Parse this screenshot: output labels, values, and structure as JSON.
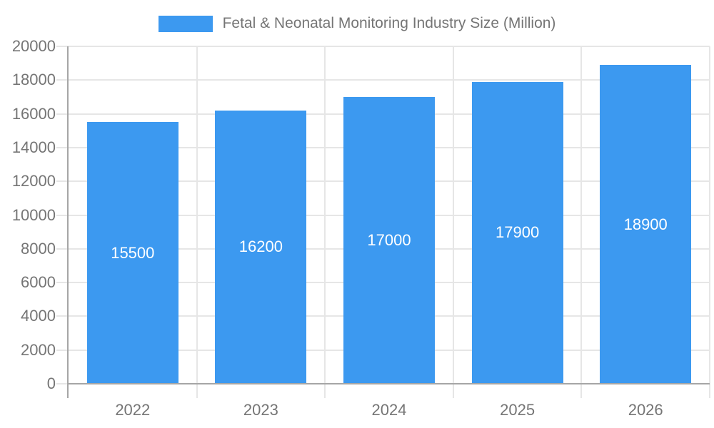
{
  "chart_data": {
    "type": "bar",
    "title": "Fetal & Neonatal Monitoring Industry Size (Million)",
    "categories": [
      "2022",
      "2023",
      "2024",
      "2025",
      "2026"
    ],
    "values": [
      15500,
      16200,
      17000,
      17900,
      18900
    ],
    "bar_labels": [
      "15500",
      "16200",
      "17000",
      "17900",
      "18900"
    ],
    "xlabel": "",
    "ylabel": "",
    "ylim": [
      0,
      20000
    ],
    "y_tick_step": 2000,
    "y_tick_labels": [
      "0",
      "2000",
      "4000",
      "6000",
      "8000",
      "10000",
      "12000",
      "14000",
      "16000",
      "18000",
      "20000"
    ],
    "grid": true,
    "legend_position": "top-center",
    "colors": {
      "bar": "#3C99F0",
      "bar_label_text": "#FFFFFF",
      "axis_text": "#757575",
      "title_text": "#757575",
      "gridline": "#E6E6E6",
      "axis_line": "#A6A6A6",
      "background": "#FFFFFF"
    }
  }
}
